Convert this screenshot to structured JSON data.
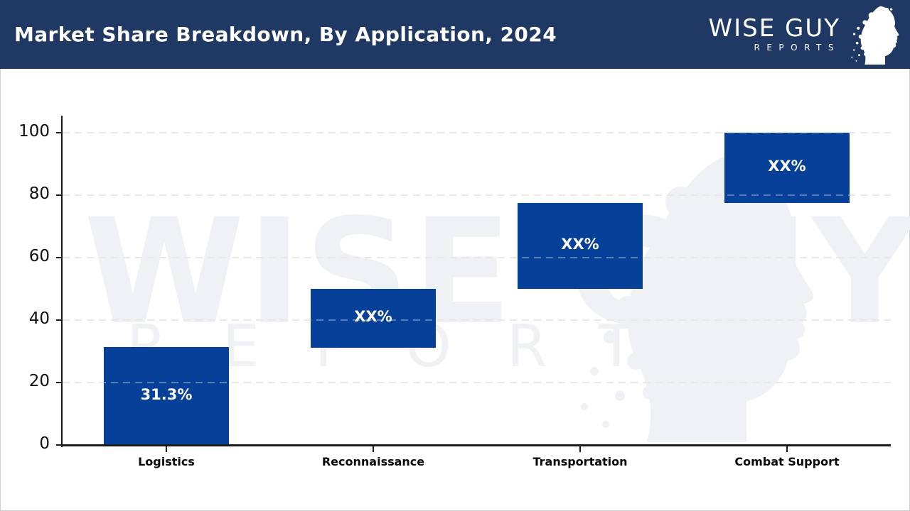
{
  "header": {
    "title": "Market Share Breakdown, By Application, 2024",
    "logo": {
      "line1": "WISE GUY",
      "line2": "REPORTS"
    }
  },
  "watermark": {
    "line1": "WISE GUY",
    "line2": "REPORTS"
  },
  "chart_data": {
    "type": "bar",
    "subtype": "floating-waterfall",
    "title": "Market Share Breakdown, By Application, 2024",
    "categories": [
      "Logistics",
      "Reconnaissance",
      "Transportation",
      "Combat Support"
    ],
    "series": [
      {
        "name": "Market share %",
        "segments": [
          {
            "category": "Logistics",
            "start": 0,
            "end": 31.3,
            "label": "31.3%"
          },
          {
            "category": "Reconnaissance",
            "start": 31.3,
            "end": 50.1,
            "label": "XX%"
          },
          {
            "category": "Transportation",
            "start": 50.1,
            "end": 77.6,
            "label": "XX%"
          },
          {
            "category": "Combat Support",
            "start": 77.6,
            "end": 100,
            "label": "XX%"
          }
        ]
      }
    ],
    "xlabel": "",
    "ylabel": "",
    "ylim": [
      0,
      100
    ],
    "yticks": [
      0,
      20,
      40,
      60,
      80,
      100
    ],
    "grid": "horizontal-dashed",
    "legend": "none",
    "colors": {
      "bar": "#074098",
      "bar_label_text": "#ffffff",
      "header_bg": "#1f3864",
      "axis": "#1a1a1a",
      "gridline": "#dcdcdc",
      "watermark": "#f0f1f4"
    }
  }
}
